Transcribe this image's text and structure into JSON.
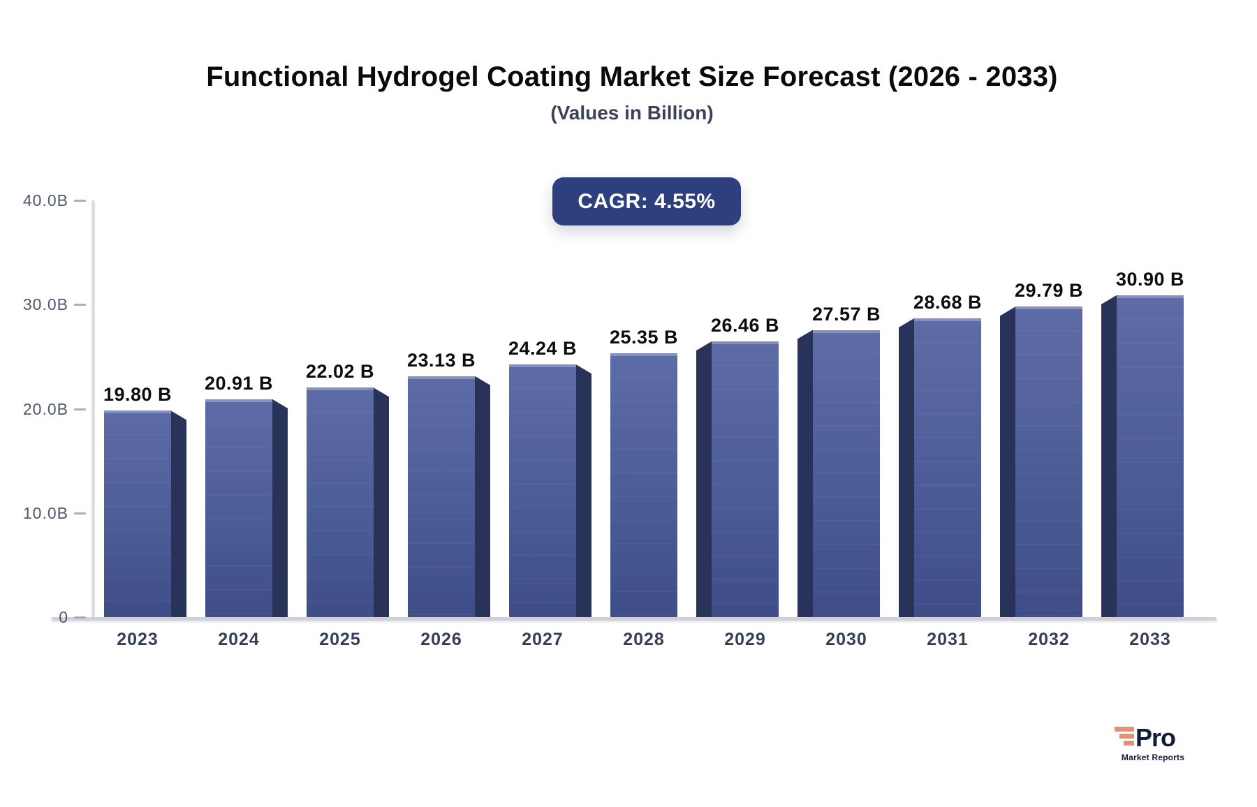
{
  "header": {
    "title": "Functional Hydrogel Coating Market Size Forecast (2026 - 2033)",
    "subtitle": "(Values in Billion)",
    "cagr_label": "CAGR: 4.55%"
  },
  "logo": {
    "name": "Pro",
    "tagline": "Market Reports"
  },
  "colors": {
    "bar_face_top": "#5e6ca6",
    "bar_face_mid": "#4c5c97",
    "bar_face_bottom": "#3e4d88",
    "bar_side": "#293359",
    "bar_top_highlight": "#8992bf",
    "badge_bg": "#2e3f7e",
    "badge_text": "#ffffff",
    "axis_line": "#dddee6",
    "baseline": "#cfd0d8",
    "logo_accent_orange": "#e8906e",
    "logo_text_navy": "#121b37"
  },
  "chart_data": {
    "type": "bar",
    "title": "Functional Hydrogel Coating Market Size Forecast (2026 - 2033)",
    "subtitle": "(Values in Billion)",
    "cagr_percent": 4.55,
    "categories": [
      "2023",
      "2024",
      "2025",
      "2026",
      "2027",
      "2028",
      "2029",
      "2030",
      "2031",
      "2032",
      "2033"
    ],
    "values": [
      19.8,
      20.91,
      22.02,
      23.13,
      24.24,
      25.35,
      26.46,
      27.57,
      28.68,
      29.79,
      30.9
    ],
    "bar_labels": [
      "19.80 B",
      "20.91 B",
      "22.02 B",
      "23.13 B",
      "24.24 B",
      "25.35 B",
      "26.46 B",
      "27.57 B",
      "28.68 B",
      "29.79 B",
      "30.90 B"
    ],
    "xlabel": "",
    "ylabel": "",
    "ylim": [
      0,
      40
    ],
    "yticks": [
      {
        "value": 0,
        "label": "0"
      },
      {
        "value": 10,
        "label": "10.0B"
      },
      {
        "value": 20,
        "label": "20.0B"
      },
      {
        "value": 30,
        "label": "30.0B"
      },
      {
        "value": 40,
        "label": "40.0B"
      }
    ],
    "grid": false,
    "legend": false,
    "style": "3d-beveled-bars, perspective toward center column"
  }
}
